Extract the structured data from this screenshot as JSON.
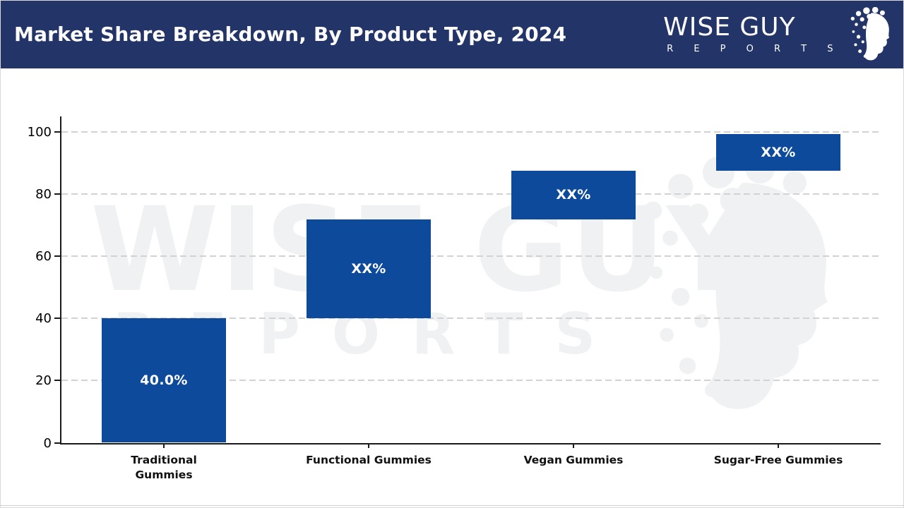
{
  "header": {
    "title": "Market Share Breakdown, By Product Type, 2024",
    "logo": {
      "primary": "WISE GUY",
      "secondary": "R E P O R T S"
    }
  },
  "watermark": {
    "line1": "WISE GUY",
    "line2": "REPORTS"
  },
  "colors": {
    "header_bg": "#223468",
    "bar": "#0d4a9c",
    "bar_label": "#ffffff",
    "axis": "#1a1a1a",
    "grid": "#d2d2d2",
    "watermark": "#f0f1f2",
    "title_text": "#ffffff"
  },
  "chart_data": {
    "type": "bar",
    "subtype": "waterfall",
    "title": "Market Share Breakdown, By Product Type, 2024",
    "categories": [
      "Traditional Gummies",
      "Functional Gummies",
      "Vegan Gummies",
      "Sugar-Free Gummies"
    ],
    "category_lines": [
      [
        "Traditional",
        "Gummies"
      ],
      [
        "Functional Gummies"
      ],
      [
        "Vegan Gummies"
      ],
      [
        "Sugar-Free Gummies"
      ]
    ],
    "segments": [
      {
        "category": "Traditional Gummies",
        "start": 0,
        "end": 40,
        "label": "40.0%",
        "estimated_value_pct": 40.0
      },
      {
        "category": "Functional Gummies",
        "start": 40,
        "end": 71.8,
        "label": "XX%",
        "estimated_value_pct": 31.8
      },
      {
        "category": "Vegan Gummies",
        "start": 71.8,
        "end": 87.6,
        "label": "XX%",
        "estimated_value_pct": 15.8
      },
      {
        "category": "Sugar-Free Gummies",
        "start": 87.6,
        "end": 99.4,
        "label": "XX%",
        "estimated_value_pct": 11.8
      }
    ],
    "xlabel": "",
    "ylabel": "",
    "ylim": [
      0,
      105
    ],
    "yticks": [
      0,
      20,
      40,
      60,
      80,
      100
    ],
    "grid": "horizontal dashed",
    "legend": "none",
    "bar_color": "#0d4a9c",
    "bar_label_color": "#ffffff"
  }
}
